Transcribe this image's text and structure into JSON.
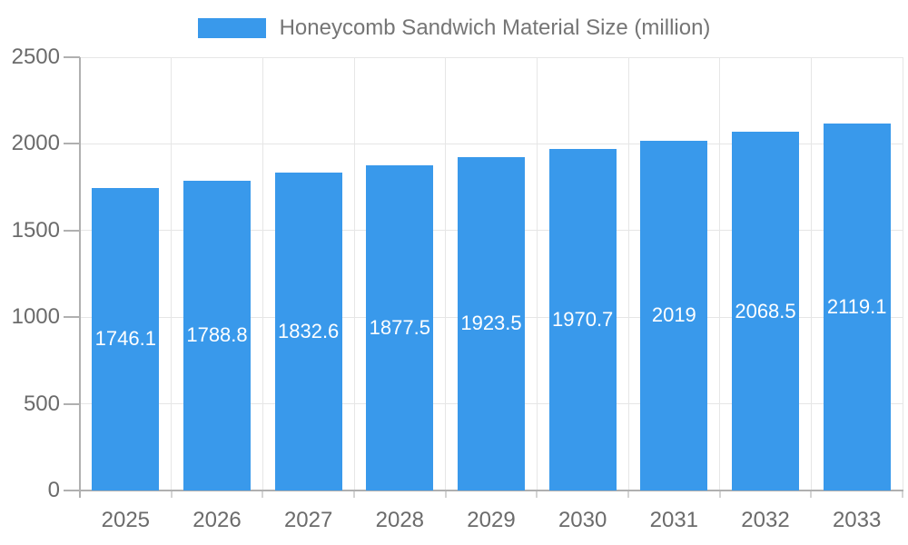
{
  "chart_data": {
    "type": "bar",
    "title": "Honeycomb Sandwich Material Size (million)",
    "categories": [
      "2025",
      "2026",
      "2027",
      "2028",
      "2029",
      "2030",
      "2031",
      "2032",
      "2033"
    ],
    "values": [
      1746.1,
      1788.8,
      1832.6,
      1877.5,
      1923.5,
      1970.7,
      2019,
      2068.5,
      2119.1
    ],
    "xlabel": "",
    "ylabel": "",
    "ylim": [
      0,
      2500
    ],
    "yticks": [
      0,
      500,
      1000,
      1500,
      2000,
      2500
    ],
    "grid": true,
    "legend_position": "top-center",
    "value_label_position": "inside-center"
  },
  "legend": {
    "label": "Honeycomb Sandwich Material Size (million)"
  },
  "colors": {
    "bar": "#3999EB",
    "grid": "#e6e6e6",
    "axis": "#b0b0b0",
    "x_tick": "#d4d4d4",
    "tick_label_text": "#6b6b6b",
    "legend_text": "#757575",
    "value_label_text": "#ffffff",
    "background": "#ffffff"
  }
}
